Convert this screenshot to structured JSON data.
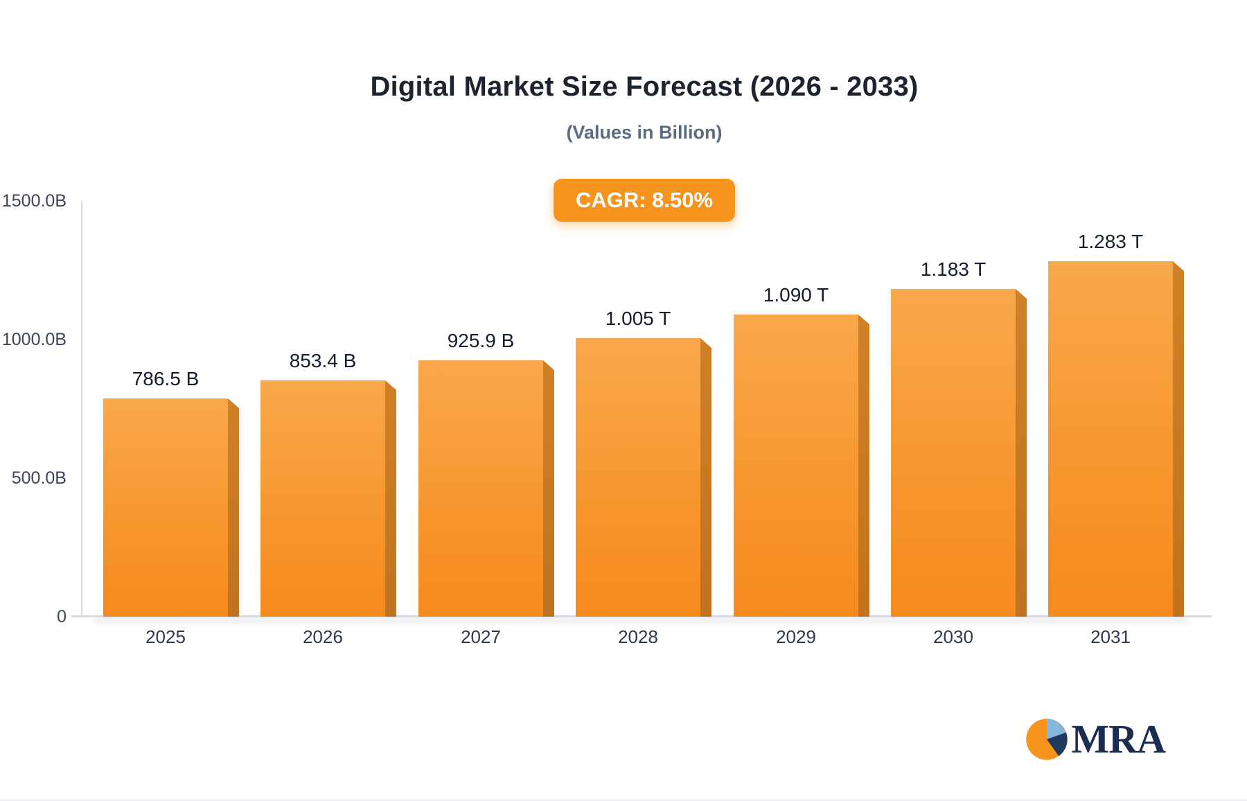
{
  "header": {
    "title": "Digital Market Size Forecast (2026 - 2033)",
    "subtitle": "(Values in Billion)",
    "cagr_badge": "CAGR: 8.50%"
  },
  "logo": {
    "text": "MRA"
  },
  "colors": {
    "accent_orange": "#f7941e",
    "bar_top": "#f9a84d",
    "bar_bottom": "#f68a1d",
    "bar_side": "#c87b22",
    "navy": "#1c2c50",
    "axis_gray": "#d6dbe2"
  },
  "chart_data": {
    "type": "bar",
    "title": "Digital Market Size Forecast (2026 - 2033)",
    "subtitle": "(Values in Billion)",
    "annotation": "CAGR: 8.50%",
    "categories": [
      "2025",
      "2026",
      "2027",
      "2028",
      "2029",
      "2030",
      "2031"
    ],
    "values": [
      786.5,
      853.4,
      925.9,
      1005,
      1090,
      1183,
      1283
    ],
    "value_labels": [
      "786.5 B",
      "853.4 B",
      "925.9 B",
      "1.005 T",
      "1.090 T",
      "1.183 T",
      "1.283 T"
    ],
    "unit": "Billion",
    "xlabel": "",
    "ylabel": "",
    "ylim": [
      0,
      1500
    ],
    "yticks": [
      0,
      500,
      1000,
      1500
    ],
    "ytick_labels": [
      "0",
      "500.0B",
      "1000.0B",
      "1500.0B"
    ],
    "grid": false,
    "legend": false
  }
}
